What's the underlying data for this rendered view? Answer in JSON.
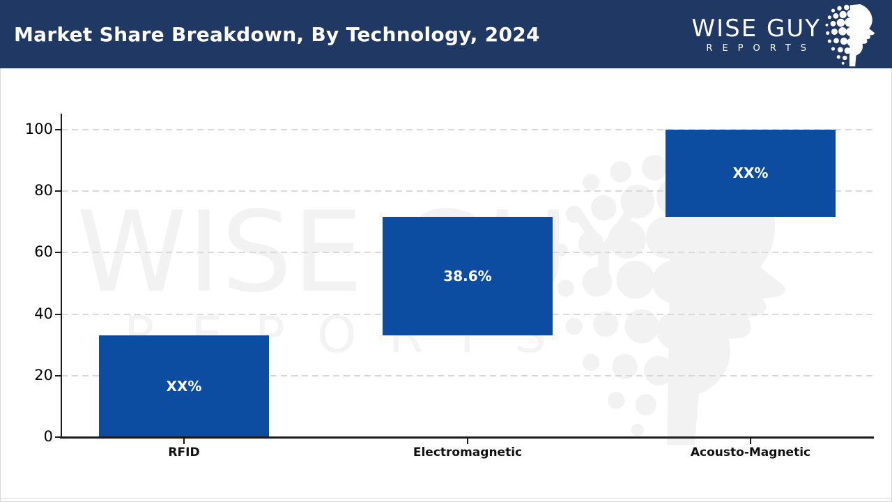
{
  "header": {
    "title": "Market Share Breakdown, By Technology, 2024",
    "bg_color": "#203864",
    "logo": {
      "line1": "WISE GUY",
      "line2": "REPORTS"
    }
  },
  "watermark": {
    "line1": "WISE GUY",
    "line2": "REPORTS"
  },
  "chart_data": {
    "type": "bar",
    "subtype": "waterfall-stacked-percentage",
    "title": "Market Share Breakdown, By Technology, 2024",
    "categories": [
      "RFID",
      "Electromagnetic",
      "Acousto-Magnetic"
    ],
    "segments": [
      {
        "start": 0,
        "end": 33.1
      },
      {
        "start": 33.1,
        "end": 71.7
      },
      {
        "start": 71.7,
        "end": 100
      }
    ],
    "values_pct": [
      33.1,
      38.6,
      28.3
    ],
    "labels": [
      "XX%",
      "38.6%",
      "XX%"
    ],
    "xlabel": "",
    "ylabel": "",
    "ylim": [
      0,
      100
    ],
    "yticks": [
      0,
      20,
      40,
      60,
      80,
      100
    ],
    "grid": "horizontal-dashed",
    "legend": "none",
    "bar_color": "#0c4da2",
    "bar_label_color": "#ffffff",
    "axis_color": "#1a1a1a",
    "grid_color": "#d9d9d9"
  }
}
